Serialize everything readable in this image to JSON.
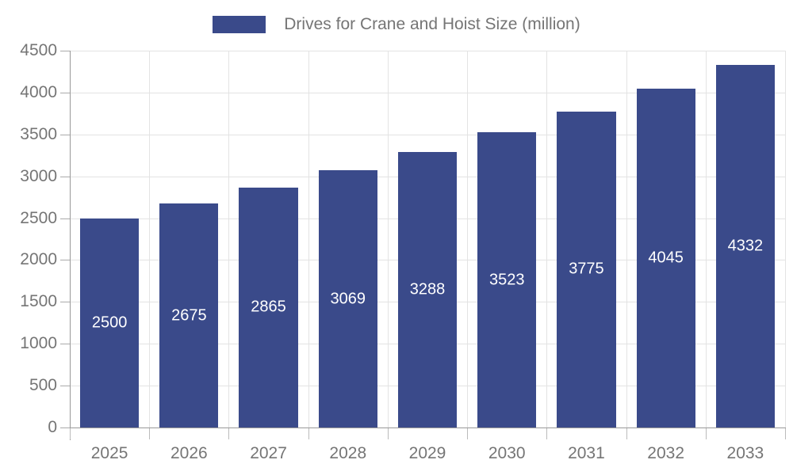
{
  "chart_data": {
    "type": "bar",
    "title": "Drives for Crane and Hoist Size (million)",
    "legend_position": "top",
    "categories": [
      "2025",
      "2026",
      "2027",
      "2028",
      "2029",
      "2030",
      "2031",
      "2032",
      "2033"
    ],
    "series": [
      {
        "name": "Drives for Crane and Hoist Size (million)",
        "values": [
          2500,
          2675,
          2865,
          3069,
          3288,
          3523,
          3775,
          4045,
          4332
        ]
      }
    ],
    "xlabel": "",
    "ylabel": "",
    "ylim": [
      0,
      4500
    ],
    "yticks": [
      0,
      500,
      1000,
      1500,
      2000,
      2500,
      3000,
      3500,
      4000,
      4500
    ],
    "grid": true,
    "bar_labels_visible": true,
    "colors": {
      "bar": "#3A4A8A",
      "bar_label": "#FFFFFF",
      "axis_text": "#757575",
      "axis_line": "#999999",
      "grid_line": "#E3E3E3",
      "background": "#FFFFFF"
    }
  }
}
